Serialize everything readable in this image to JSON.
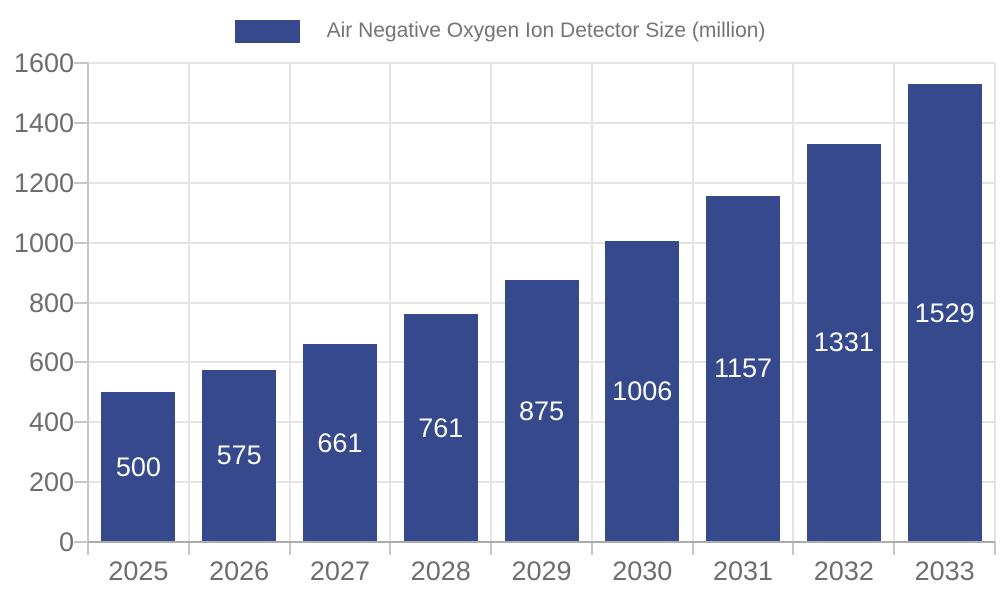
{
  "legend": {
    "label": "Air Negative Oxygen Ion Detector Size (million)"
  },
  "chart_data": {
    "type": "bar",
    "title": "Air Negative Oxygen Ion Detector Size (million)",
    "categories": [
      "2025",
      "2026",
      "2027",
      "2028",
      "2029",
      "2030",
      "2031",
      "2032",
      "2033"
    ],
    "values": [
      500,
      575,
      661,
      761,
      875,
      1006,
      1157,
      1331,
      1529
    ],
    "value_labels": [
      "500",
      "575",
      "661",
      "761",
      "875",
      "1006",
      "1157",
      "1331",
      "1529"
    ],
    "xlabel": "",
    "ylabel": "",
    "ylim": [
      0,
      1600
    ],
    "ytick_step": 200,
    "ytick_labels": [
      "0",
      "200",
      "400",
      "600",
      "800",
      "1000",
      "1200",
      "1400",
      "1600"
    ],
    "grid": true,
    "legend_position": "top-center",
    "bar_color": "#35498C",
    "value_label_color": "#FAFAFA",
    "axis_text_color": "#6E6E6E",
    "gridline_color": "#E4E4E4"
  }
}
